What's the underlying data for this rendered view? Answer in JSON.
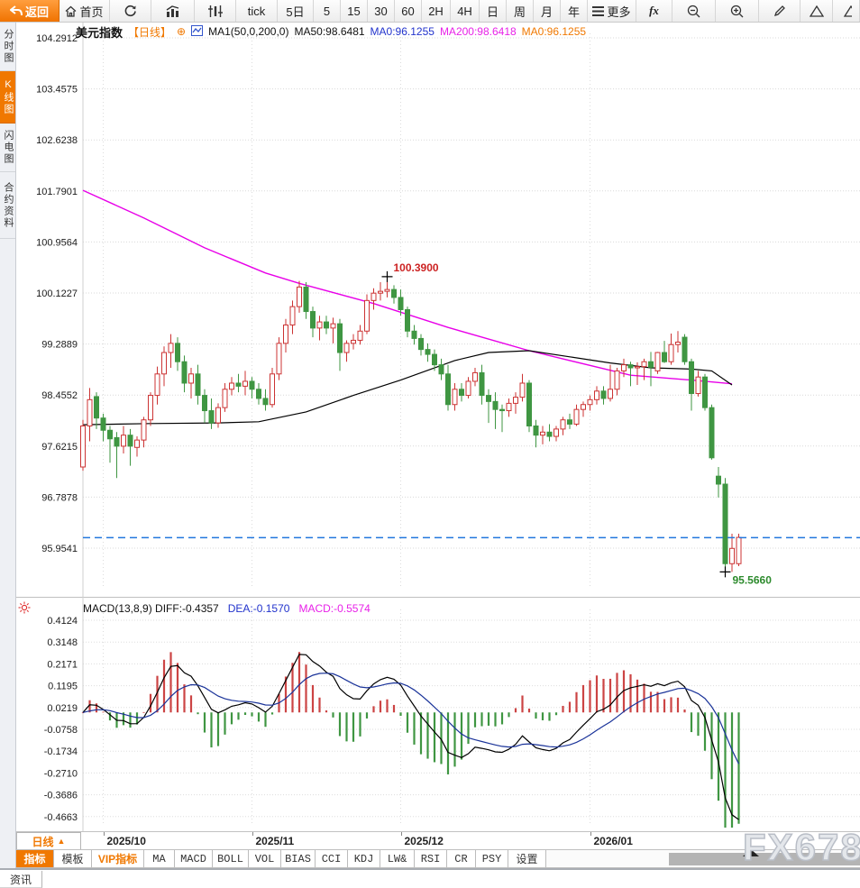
{
  "toolbar": {
    "items": [
      {
        "name": "back",
        "label": "返回",
        "icon": "back"
      },
      {
        "name": "home",
        "label": "首页",
        "icon": "home"
      },
      {
        "name": "refresh",
        "label": "",
        "icon": "refresh"
      },
      {
        "name": "bar-chart",
        "label": "",
        "icon": "bar-chart"
      },
      {
        "name": "candlestick",
        "label": "",
        "icon": "candlestick"
      },
      {
        "name": "tick",
        "label": "tick",
        "icon": ""
      },
      {
        "name": "5d",
        "label": "5日",
        "icon": ""
      },
      {
        "name": "m5",
        "label": "5",
        "icon": ""
      },
      {
        "name": "m15",
        "label": "15",
        "icon": ""
      },
      {
        "name": "m30",
        "label": "30",
        "icon": ""
      },
      {
        "name": "m60",
        "label": "60",
        "icon": ""
      },
      {
        "name": "h2",
        "label": "2H",
        "icon": ""
      },
      {
        "name": "h4",
        "label": "4H",
        "icon": ""
      },
      {
        "name": "day",
        "label": "日",
        "icon": ""
      },
      {
        "name": "week",
        "label": "周",
        "icon": ""
      },
      {
        "name": "month",
        "label": "月",
        "icon": ""
      },
      {
        "name": "year",
        "label": "年",
        "icon": ""
      },
      {
        "name": "more",
        "label": "更多",
        "icon": "menu"
      },
      {
        "name": "fx",
        "label": "fx",
        "icon": ""
      },
      {
        "name": "zoom-out",
        "label": "",
        "icon": "zoom-out"
      },
      {
        "name": "zoom-in",
        "label": "",
        "icon": "zoom-in"
      },
      {
        "name": "draw",
        "label": "",
        "icon": "pencil"
      },
      {
        "name": "shapes",
        "label": "",
        "icon": "triangle"
      },
      {
        "name": "shapes-partial",
        "label": "",
        "icon": "triangle-partial"
      }
    ]
  },
  "sidebar": {
    "items": [
      {
        "label": "分时图",
        "active": false
      },
      {
        "label": "K线图",
        "active": true
      },
      {
        "label": "闪电图",
        "active": false
      },
      {
        "label": "合约资料",
        "active": false
      }
    ]
  },
  "chart_header": {
    "symbol": "美元指数",
    "period": "【日线】",
    "add_icon": "⊕",
    "ma_def": "MA1(50,0,200,0)",
    "ma50": "MA50:98.6481",
    "ma0_blue": "MA0:96.1255",
    "ma200": "MA200:98.6418",
    "ma0_orange": "MA0:96.1255"
  },
  "colors": {
    "up": "#cc3333",
    "down": "#3f9642",
    "ma50": "#000000",
    "ma200": "#e800e8",
    "price_line": "#2277dd",
    "diff": "#000000",
    "dea": "#1a3399",
    "hist_pos": "#cc4444",
    "hist_neg": "#3f9642",
    "accent": "#f07800"
  },
  "chart_data": [
    {
      "type": "candlestick",
      "title": "美元指数 日线",
      "y_tick_labels": [
        "104.2912",
        "103.4575",
        "102.6238",
        "101.7901",
        "100.9564",
        "100.1227",
        "99.2889",
        "98.4552",
        "97.6215",
        "96.7878",
        "95.9541"
      ],
      "x_ticks": [
        {
          "i": 3,
          "label": "2025/10"
        },
        {
          "i": 25,
          "label": "2025/11"
        },
        {
          "i": 47,
          "label": "2025/12"
        },
        {
          "i": 75,
          "label": "2026/01"
        }
      ],
      "current_price": 96.1255,
      "high_marker": {
        "i": 45,
        "price": 100.39,
        "label": "100.3900"
      },
      "low_marker": {
        "i": 95,
        "price": 95.566,
        "label": "95.5660"
      },
      "candles": [
        [
          97.28,
          98.05,
          97.22,
          97.95
        ],
        [
          97.95,
          98.57,
          97.7,
          98.38
        ],
        [
          98.43,
          98.5,
          97.9,
          98.08
        ],
        [
          98.08,
          98.15,
          97.7,
          97.88
        ],
        [
          97.88,
          97.95,
          97.35,
          97.74
        ],
        [
          97.76,
          97.85,
          97.1,
          97.62
        ],
        [
          97.62,
          97.95,
          97.5,
          97.8
        ],
        [
          97.8,
          97.9,
          97.3,
          97.62
        ],
        [
          97.6,
          97.78,
          97.45,
          97.72
        ],
        [
          97.72,
          98.1,
          97.6,
          98.05
        ],
        [
          98.05,
          98.5,
          97.95,
          98.45
        ],
        [
          98.45,
          98.92,
          98.3,
          98.8
        ],
        [
          98.8,
          99.25,
          98.6,
          99.15
        ],
        [
          99.15,
          99.45,
          98.9,
          99.3
        ],
        [
          99.3,
          99.4,
          98.85,
          99.0
        ],
        [
          99.0,
          99.1,
          98.5,
          98.65
        ],
        [
          98.65,
          98.9,
          98.4,
          98.8
        ],
        [
          98.8,
          98.95,
          98.3,
          98.45
        ],
        [
          98.45,
          98.55,
          98.0,
          98.2
        ],
        [
          98.2,
          98.4,
          97.9,
          98.0
        ],
        [
          98.0,
          98.32,
          97.92,
          98.25
        ],
        [
          98.25,
          98.65,
          98.18,
          98.55
        ],
        [
          98.55,
          98.75,
          98.45,
          98.65
        ],
        [
          98.65,
          98.8,
          98.5,
          98.6
        ],
        [
          98.6,
          98.85,
          98.45,
          98.68
        ],
        [
          98.68,
          98.75,
          98.4,
          98.55
        ],
        [
          98.55,
          98.65,
          98.3,
          98.4
        ],
        [
          98.4,
          98.55,
          98.2,
          98.3
        ],
        [
          98.3,
          98.9,
          98.25,
          98.8
        ],
        [
          98.8,
          99.4,
          98.7,
          99.3
        ],
        [
          99.3,
          99.7,
          99.15,
          99.6
        ],
        [
          99.6,
          100.0,
          99.45,
          99.9
        ],
        [
          99.9,
          100.32,
          99.8,
          100.22
        ],
        [
          100.22,
          100.3,
          99.7,
          99.82
        ],
        [
          99.82,
          99.9,
          99.4,
          99.55
        ],
        [
          99.55,
          99.75,
          99.35,
          99.65
        ],
        [
          99.65,
          99.75,
          99.45,
          99.55
        ],
        [
          99.55,
          99.72,
          99.3,
          99.62
        ],
        [
          99.62,
          99.7,
          98.85,
          99.15
        ],
        [
          99.15,
          99.35,
          99.0,
          99.3
        ],
        [
          99.3,
          99.45,
          99.2,
          99.35
        ],
        [
          99.35,
          99.6,
          99.28,
          99.5
        ],
        [
          99.5,
          100.1,
          99.45,
          100.0
        ],
        [
          100.0,
          100.2,
          99.85,
          100.12
        ],
        [
          100.12,
          100.3,
          100.0,
          100.15
        ],
        [
          100.15,
          100.39,
          100.05,
          100.18
        ],
        [
          100.18,
          100.25,
          99.95,
          100.05
        ],
        [
          100.05,
          100.18,
          99.75,
          99.85
        ],
        [
          99.85,
          99.9,
          99.4,
          99.5
        ],
        [
          99.5,
          99.6,
          99.28,
          99.38
        ],
        [
          99.38,
          99.45,
          99.1,
          99.2
        ],
        [
          99.2,
          99.3,
          99.0,
          99.12
        ],
        [
          99.12,
          99.2,
          98.85,
          98.95
        ],
        [
          98.95,
          99.05,
          98.7,
          98.8
        ],
        [
          98.8,
          98.95,
          98.2,
          98.3
        ],
        [
          98.3,
          98.65,
          98.2,
          98.55
        ],
        [
          98.55,
          98.65,
          98.35,
          98.45
        ],
        [
          98.45,
          98.75,
          98.4,
          98.68
        ],
        [
          98.68,
          98.9,
          98.6,
          98.82
        ],
        [
          98.82,
          98.95,
          98.3,
          98.45
        ],
        [
          98.45,
          98.55,
          98.0,
          98.35
        ],
        [
          98.35,
          98.5,
          97.9,
          98.22
        ],
        [
          98.22,
          98.3,
          97.85,
          98.2
        ],
        [
          98.2,
          98.4,
          98.1,
          98.32
        ],
        [
          98.32,
          98.5,
          98.15,
          98.42
        ],
        [
          98.42,
          98.8,
          98.35,
          98.65
        ],
        [
          98.65,
          98.7,
          97.85,
          97.95
        ],
        [
          97.95,
          98.05,
          97.6,
          97.8
        ],
        [
          97.8,
          97.95,
          97.65,
          97.85
        ],
        [
          97.85,
          97.98,
          97.7,
          97.78
        ],
        [
          97.78,
          97.95,
          97.7,
          97.9
        ],
        [
          97.9,
          98.1,
          97.8,
          98.05
        ],
        [
          98.05,
          98.15,
          97.9,
          97.98
        ],
        [
          97.98,
          98.3,
          97.95,
          98.22
        ],
        [
          98.22,
          98.35,
          98.1,
          98.3
        ],
        [
          98.3,
          98.45,
          98.2,
          98.38
        ],
        [
          98.38,
          98.6,
          98.3,
          98.52
        ],
        [
          98.52,
          98.6,
          98.3,
          98.4
        ],
        [
          98.4,
          98.95,
          98.35,
          98.55
        ],
        [
          98.55,
          98.9,
          98.45,
          98.85
        ],
        [
          98.85,
          99.05,
          98.75,
          98.95
        ],
        [
          98.95,
          99.0,
          98.6,
          98.9
        ],
        [
          98.9,
          98.99,
          98.62,
          98.92
        ],
        [
          98.92,
          99.05,
          98.7,
          99.0
        ],
        [
          99.0,
          99.16,
          98.6,
          98.91
        ],
        [
          98.85,
          99.16,
          98.8,
          99.15
        ],
        [
          99.15,
          99.34,
          98.98,
          99.0
        ],
        [
          99.0,
          99.46,
          98.95,
          99.28
        ],
        [
          99.28,
          99.5,
          99.15,
          99.32
        ],
        [
          99.4,
          99.45,
          98.95,
          99.0
        ],
        [
          99.0,
          99.05,
          98.2,
          98.48
        ],
        [
          98.48,
          98.85,
          98.43,
          98.75
        ],
        [
          98.75,
          98.8,
          98.2,
          98.25
        ],
        [
          98.25,
          98.3,
          97.4,
          97.43
        ],
        [
          97.13,
          97.28,
          96.78,
          97.0
        ],
        [
          97.0,
          97.1,
          95.57,
          95.7
        ],
        [
          95.7,
          96.19,
          95.566,
          95.95
        ],
        [
          95.7,
          96.19,
          95.66,
          96.13
        ]
      ],
      "ma50": [
        [
          0,
          97.97
        ],
        [
          10,
          97.99
        ],
        [
          20,
          98.0
        ],
        [
          26,
          98.02
        ],
        [
          33,
          98.18
        ],
        [
          40,
          98.45
        ],
        [
          47,
          98.7
        ],
        [
          55,
          99.02
        ],
        [
          60,
          99.15
        ],
        [
          66,
          99.18
        ],
        [
          72,
          99.08
        ],
        [
          78,
          98.98
        ],
        [
          84,
          98.9
        ],
        [
          90,
          98.88
        ],
        [
          93,
          98.85
        ],
        [
          96,
          98.62
        ]
      ],
      "ma200": [
        [
          0,
          101.8
        ],
        [
          9,
          101.35
        ],
        [
          18,
          100.86
        ],
        [
          27,
          100.45
        ],
        [
          32,
          100.28
        ],
        [
          43,
          99.95
        ],
        [
          54,
          99.56
        ],
        [
          66,
          99.18
        ],
        [
          81,
          98.78
        ],
        [
          90,
          98.7
        ],
        [
          96,
          98.64
        ]
      ]
    },
    {
      "type": "macd",
      "params_label": "MACD(13,8,9)",
      "diff_label": "DIFF:-0.4357",
      "dea_label": "DEA:-0.1570",
      "macd_label": "MACD:-0.5574",
      "y_tick_labels": [
        "0.4124",
        "0.3148",
        "0.2171",
        "0.1195",
        "0.0219",
        "-0.0758",
        "-0.1734",
        "-0.2710",
        "-0.3686",
        "-0.4663"
      ],
      "fast": 8,
      "slow": 13,
      "signal": 9
    }
  ],
  "bottom": {
    "period_label": "日线",
    "period_arrow": "▲",
    "tabs": [
      {
        "label": "指标",
        "active": true,
        "cjk": true
      },
      {
        "label": "模板",
        "active": false,
        "cjk": true
      },
      {
        "label": "VIP指标",
        "vip": true,
        "cjk": true
      },
      {
        "label": "MA"
      },
      {
        "label": "MACD"
      },
      {
        "label": "BOLL"
      },
      {
        "label": "VOL"
      },
      {
        "label": "BIAS"
      },
      {
        "label": "CCI"
      },
      {
        "label": "KDJ"
      },
      {
        "label": "LW&"
      },
      {
        "label": "RSI"
      },
      {
        "label": "CR"
      },
      {
        "label": "PSY"
      },
      {
        "label": "设置",
        "cjk": true
      }
    ],
    "watermark": "FX678",
    "news_label": "资讯"
  }
}
